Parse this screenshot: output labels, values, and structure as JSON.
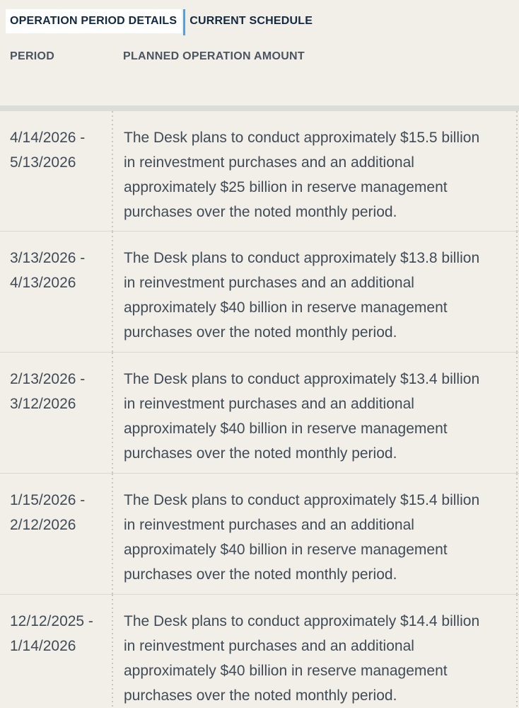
{
  "tabs": [
    {
      "label": "OPERATION PERIOD DETAILS",
      "active": true
    },
    {
      "label": "CURRENT SCHEDULE",
      "active": false
    }
  ],
  "table": {
    "columns": [
      "PERIOD",
      "PLANNED OPERATION AMOUNT"
    ],
    "rows": [
      {
        "period_line1": "4/14/2026 -",
        "period_line2": "5/13/2026",
        "amount_lines": [
          "The Desk plans to conduct approximately $15.5 billion",
          "in reinvestment purchases and an additional",
          "approximately $25 billion in reserve management",
          "purchases over the noted monthly period."
        ]
      },
      {
        "period_line1": "3/13/2026 -",
        "period_line2": "4/13/2026",
        "amount_lines": [
          "The Desk plans to conduct approximately $13.8 billion",
          "in reinvestment purchases and an additional",
          "approximately $40 billion in reserve management",
          "purchases over the noted monthly period."
        ]
      },
      {
        "period_line1": "2/13/2026 -",
        "period_line2": "3/12/2026",
        "amount_lines": [
          "The Desk plans to conduct approximately $13.4 billion",
          "in reinvestment purchases and an additional",
          "approximately $40 billion in reserve management",
          "purchases over the noted monthly period."
        ]
      },
      {
        "period_line1": "1/15/2026 -",
        "period_line2": "2/12/2026",
        "amount_lines": [
          "The Desk plans to conduct approximately $15.4 billion",
          "in reinvestment purchases and an additional",
          "approximately $40 billion in reserve management",
          "purchases over the noted monthly period."
        ]
      },
      {
        "period_line1": "12/12/2025 -",
        "period_line2": "1/14/2026",
        "amount_lines": [
          "The Desk plans to conduct approximately $14.4 billion",
          "in reinvestment purchases and an additional",
          "approximately $40 billion in reserve management",
          "purchases over the noted monthly period."
        ]
      }
    ]
  },
  "colors": {
    "background": "#f2efe8",
    "active_tab_background": "#ffffff",
    "tab_text": "#13293f",
    "tab_divider_blue": "#5b9fd6",
    "column_header_text": "#4a5560",
    "body_text": "#3f4b57",
    "header_band": "#dcdcd8",
    "row_separator": "#d8d8d4",
    "dotted_border": "#c7c7c1"
  }
}
